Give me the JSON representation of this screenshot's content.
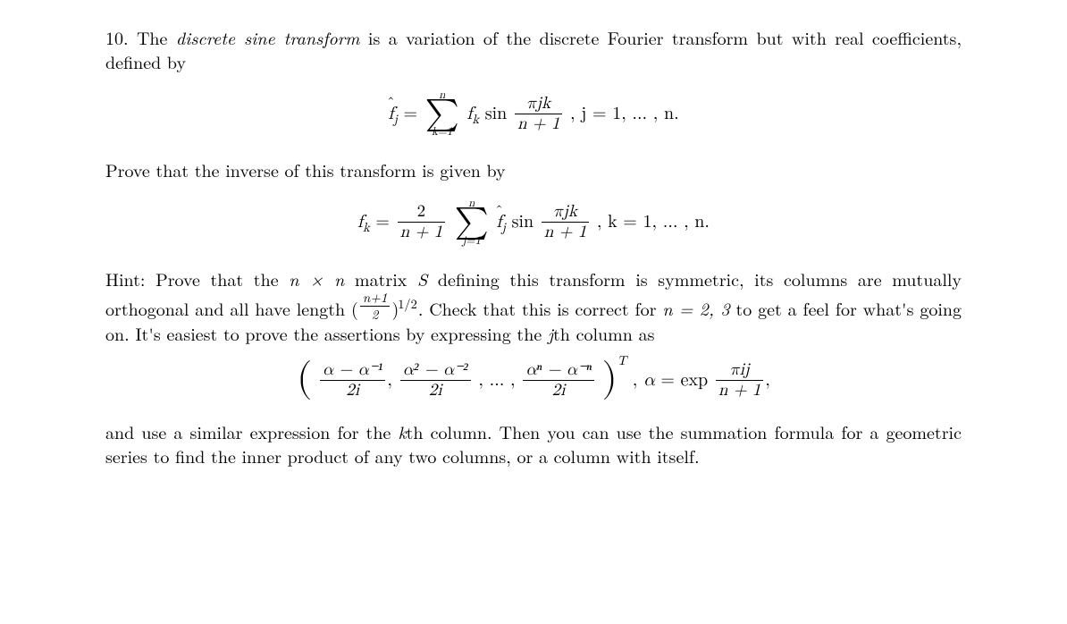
{
  "problem_number": "10.",
  "intro_before_term": "The ",
  "term": "discrete sine transform",
  "intro_after_term": " is a variation of the discrete Fourier transform but with real coefficients, defined by",
  "eq1": {
    "lhs_hat": "f",
    "lhs_sub": "j",
    "equals": " = ",
    "sum_top": "n",
    "sum_bot": "k=1",
    "summand_f": "f",
    "summand_sub": "k",
    "sin": " sin ",
    "frac_num": "πjk",
    "frac_den": "n + 1",
    "tail": ",    j = 1, … , n."
  },
  "prove_text": "Prove that the inverse of this transform is given by",
  "eq2": {
    "lhs_f": "f",
    "lhs_sub": "k",
    "equals": " = ",
    "coef_num": "2",
    "coef_den": "n + 1",
    "sum_top": "n",
    "sum_bot": "j=1",
    "summand_hat": "f",
    "summand_sub": "j",
    "sin": " sin ",
    "frac_num": "πjk",
    "frac_den": "n + 1",
    "tail": ",    k = 1, … , n."
  },
  "hint_a": "Hint: Prove that the ",
  "hint_nxn": "n × n",
  "hint_b": " matrix ",
  "hint_S": "S",
  "hint_c": " defining this transform is symmetric, its columns are mutually orthogonal and all have length (",
  "hint_len_num": "n+1",
  "hint_len_den": "2",
  "hint_d_exp": ")",
  "hint_half": "1/2",
  "hint_e": ". Check that this is correct for ",
  "hint_n23": "n = 2, 3",
  "hint_f": " to get a feel for what's going on. It's easiest to prove the assertions by expressing the ",
  "hint_jth": "j",
  "hint_g": "th column as",
  "colvec": {
    "e1_num": "α − α⁻¹",
    "e1_den": "2i",
    "e2_num": "α² − α⁻²",
    "e2_den": "2i",
    "dots": ", … ,",
    "en_num": "αⁿ − α⁻ⁿ",
    "en_den": "2i",
    "transpose": "T",
    "comma": ",    ",
    "alpha_def_l": "α = exp ",
    "alpha_num": "πij",
    "alpha_den": "n + 1",
    "trail": ","
  },
  "closing": "and use a similar expression for the ",
  "closing_kth": "k",
  "closing_b": "th column. Then you can use the summation formula for a geometric series to find the inner product of any two columns, or a column with itself."
}
